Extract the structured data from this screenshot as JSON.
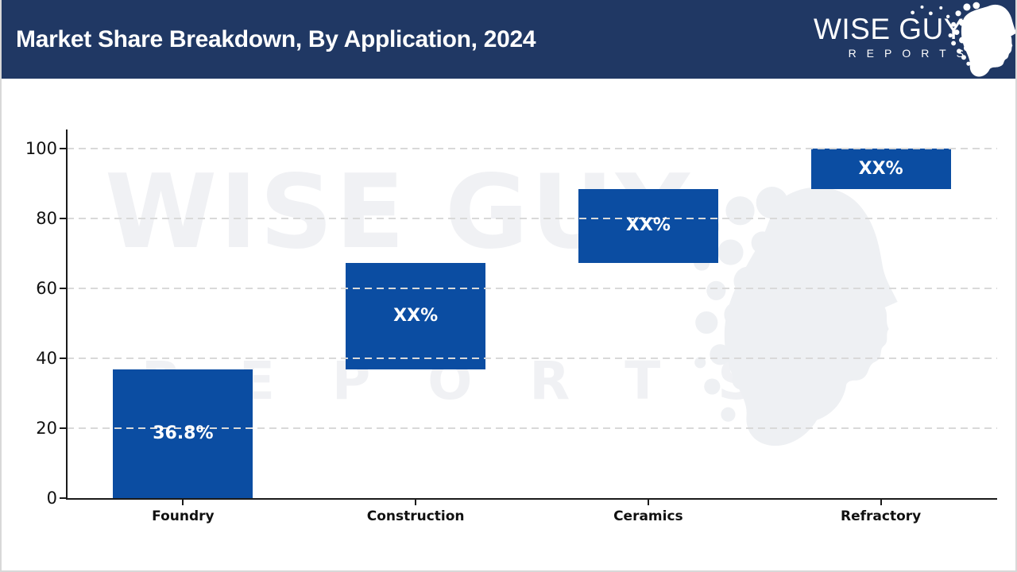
{
  "page": {
    "background": "#ffffff",
    "border_color": "#d8d8d8"
  },
  "header": {
    "background": "#203864",
    "title": "Market Share Breakdown, By Application, 2024",
    "logo": {
      "brand": "WISE GUY",
      "sub": "REPORTS"
    }
  },
  "watermark": {
    "brand": "WISE GUY",
    "sub": "REPORTS"
  },
  "chart_data": {
    "type": "bar",
    "subtype": "waterfall-stacked-percentage",
    "title": "Market Share Breakdown, By Application, 2024",
    "categories": [
      "Foundry",
      "Construction",
      "Ceramics",
      "Refractory"
    ],
    "series": [
      {
        "name": "Foundry",
        "start": 0,
        "end": 36.8,
        "value": 36.8,
        "label": "36.8%"
      },
      {
        "name": "Construction",
        "start": 36.8,
        "end": 67.3,
        "value": 30.5,
        "label": "XX%"
      },
      {
        "name": "Ceramics",
        "start": 67.3,
        "end": 88.4,
        "value": 21.1,
        "label": "XX%"
      },
      {
        "name": "Refractory",
        "start": 88.4,
        "end": 100,
        "value": 11.6,
        "label": "XX%"
      }
    ],
    "yticks": [
      0,
      20,
      40,
      60,
      80,
      100
    ],
    "ylim": [
      0,
      105
    ],
    "xlabel": "",
    "ylabel": "",
    "legend_position": "none",
    "grid": "horizontal-dashed",
    "bar_color": "#0b4da2",
    "bar_label_color": "#ffffff",
    "axis_color": "#1a1a1a",
    "grid_color": "#d9d9d9",
    "tick_label_color": "#111111"
  }
}
